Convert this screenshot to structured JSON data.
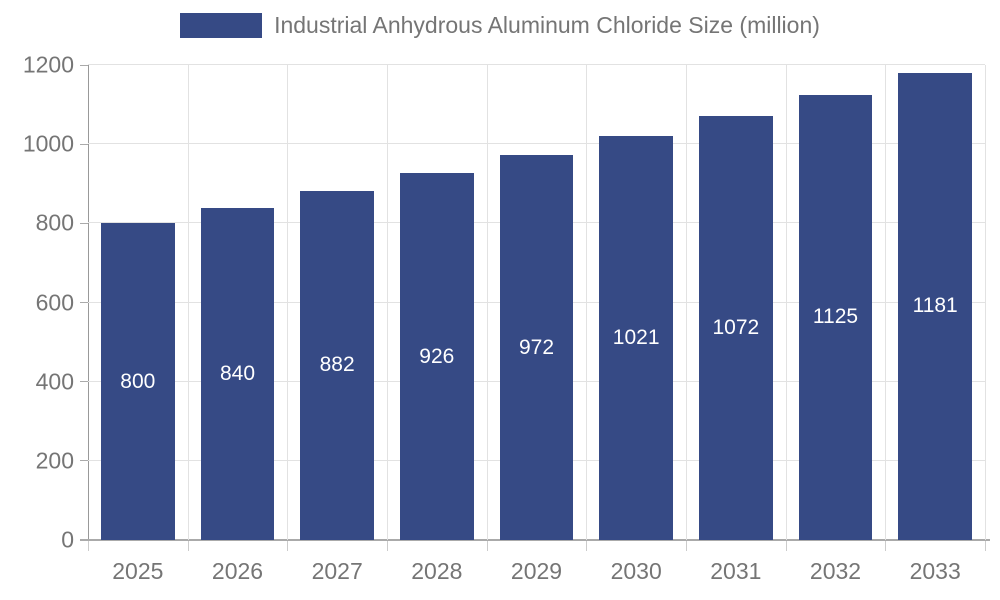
{
  "legend": {
    "label": "Industrial Anhydrous Aluminum Chloride Size (million)"
  },
  "chart_data": {
    "type": "bar",
    "title": "Industrial Anhydrous Aluminum Chloride Size (million)",
    "categories": [
      "2025",
      "2026",
      "2027",
      "2028",
      "2029",
      "2030",
      "2031",
      "2032",
      "2033"
    ],
    "values": [
      800,
      840,
      882,
      926,
      972,
      1021,
      1072,
      1125,
      1181
    ],
    "xlabel": "",
    "ylabel": "",
    "ylim": [
      0,
      1200
    ],
    "yticks": [
      0,
      200,
      400,
      600,
      800,
      1000,
      1200
    ],
    "grid": true,
    "legend_position": "top",
    "bar_color": "#364a85",
    "value_label_color": "#ffffff",
    "axis_text_color": "#757575"
  }
}
